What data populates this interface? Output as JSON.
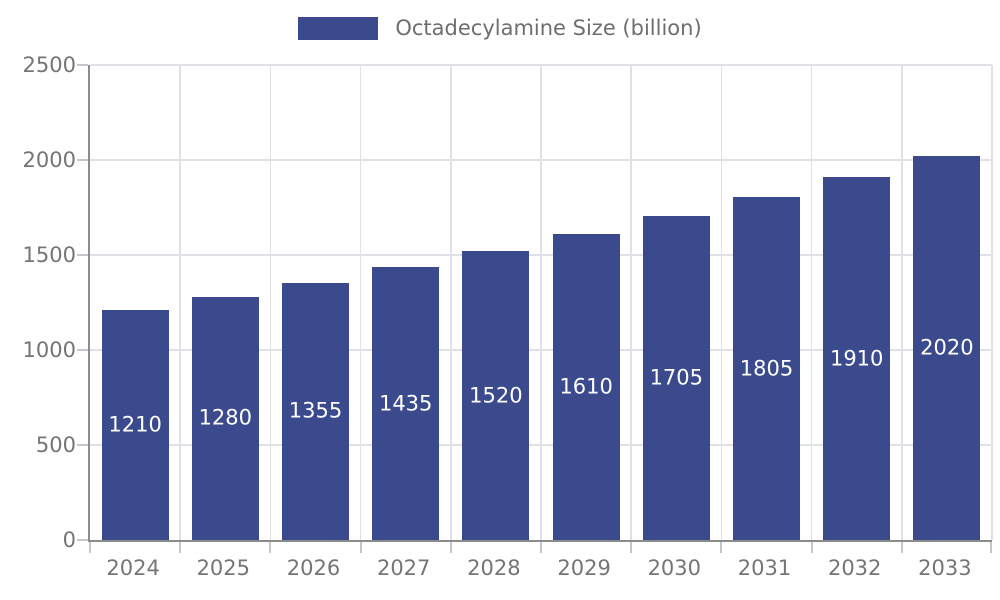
{
  "chart_data": {
    "type": "bar",
    "title": "Octadecylamine Size (billion)",
    "legend_label": "Octadecylamine Size (billion)",
    "categories": [
      "2024",
      "2025",
      "2026",
      "2027",
      "2028",
      "2029",
      "2030",
      "2031",
      "2032",
      "2033"
    ],
    "values": [
      1210,
      1280,
      1355,
      1435,
      1520,
      1610,
      1705,
      1805,
      1910,
      2020
    ],
    "xlabel": "",
    "ylabel": "",
    "ylim": [
      0,
      2500
    ],
    "yticks": [
      0,
      500,
      1000,
      1500,
      2000,
      2500
    ],
    "grid": true,
    "legend_position": "top-center",
    "bar_labels_inside": true,
    "colors": {
      "bar": "#3a4a8c",
      "bar_label": "#ffffff",
      "axis_text": "#757575",
      "legend_text": "#6e6e6e",
      "gridline": "#e0e0e8",
      "axis_line": "#8c8c8c",
      "tick": "#c6c6ce",
      "background": "#ffffff"
    }
  }
}
